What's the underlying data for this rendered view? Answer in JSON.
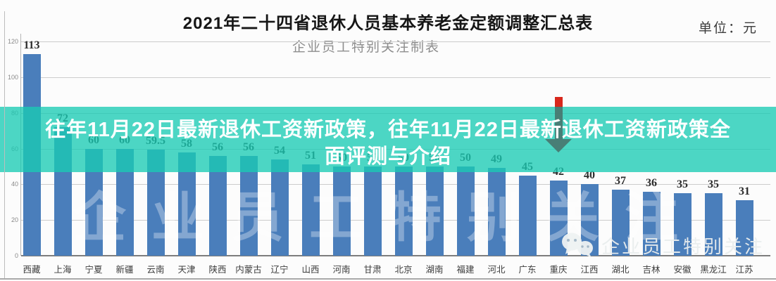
{
  "header": {
    "title": "2021年二十四省退休人员基本养老金定额调整汇总表",
    "unit_label": "单位：元",
    "subtitle": "企业员工特别关注制表"
  },
  "overlay": {
    "line1": "往年11月22日最新退休工资新政策，往年11月22日最新退休工资新政策全",
    "line2": "面评测与介绍",
    "band_color": "#19cab4"
  },
  "watermarks": {
    "center": "企业员工特别关注",
    "corner": "企业员工特别关注",
    "corner_icon": "chat-bubbles-icon"
  },
  "chart_data": {
    "type": "bar",
    "title": "2021年二十四省退休人员基本养老金定额调整汇总表",
    "unit": "元",
    "categories": [
      "西藏",
      "上海",
      "宁夏",
      "新疆",
      "云南",
      "天津",
      "陕西",
      "内蒙古",
      "辽宁",
      "山西",
      "河南",
      "甘肃",
      "北京",
      "湖南",
      "福建",
      "河北",
      "广东",
      "重庆",
      "江西",
      "湖北",
      "吉林",
      "安徽",
      "黑龙江",
      "江苏"
    ],
    "values": [
      113,
      72,
      60,
      60,
      59.5,
      58,
      56,
      56,
      54,
      51,
      50,
      50,
      50,
      50,
      50,
      49,
      45,
      42,
      40,
      37,
      36,
      35,
      35,
      31
    ],
    "ylim": [
      0,
      120
    ],
    "yticks": [
      0,
      20,
      40,
      60,
      80,
      100,
      120
    ],
    "grid": true,
    "legend": "none",
    "bar_color": "#4a7ebb",
    "annotation": {
      "type": "down-arrow",
      "target": "重庆",
      "color": "#d8281c"
    }
  }
}
